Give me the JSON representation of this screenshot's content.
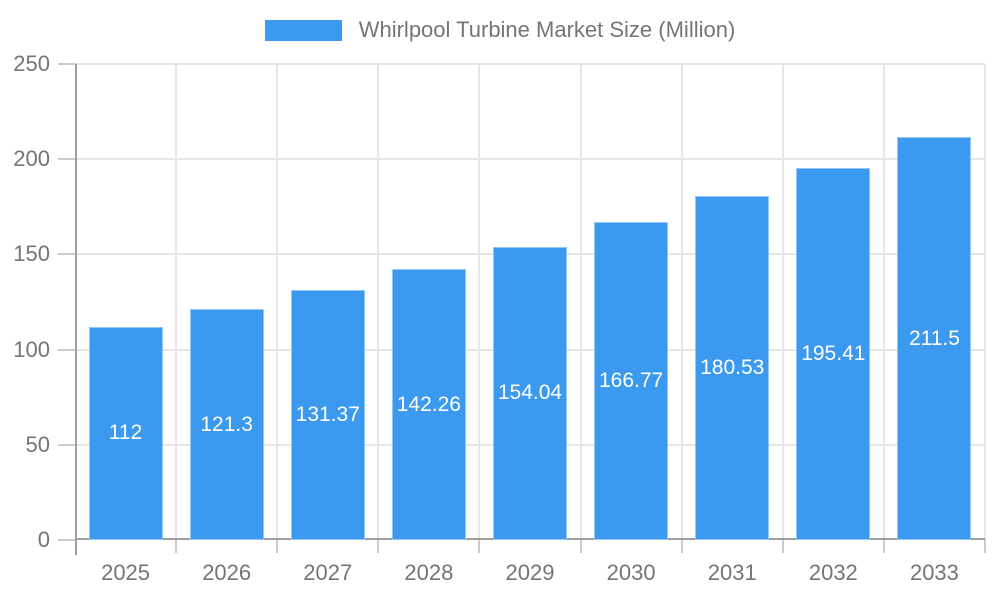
{
  "legend": {
    "label": "Whirlpool Turbine Market Size (Million)"
  },
  "colors": {
    "bar": "#3b99f0",
    "bar_stroke": "#a7ccf2",
    "axis": "#9e9e9e",
    "gridline": "#e6e6e6",
    "tick": "#cccccc",
    "label_text": "#757575",
    "value_label_text": "#ffffff",
    "background": "#ffffff"
  },
  "chart_data": {
    "type": "bar",
    "title": "",
    "legend_label": "Whirlpool Turbine Market Size (Million)",
    "legend_position": "top",
    "xlabel": "",
    "ylabel": "",
    "categories": [
      "2025",
      "2026",
      "2027",
      "2028",
      "2029",
      "2030",
      "2031",
      "2032",
      "2033"
    ],
    "values": [
      112,
      121.3,
      131.37,
      142.26,
      154.04,
      166.77,
      180.53,
      195.41,
      211.5
    ],
    "value_labels": [
      "112",
      "121.3",
      "131.37",
      "142.26",
      "154.04",
      "166.77",
      "180.53",
      "195.41",
      "211.5"
    ],
    "ylim": [
      0,
      250
    ],
    "yticks": [
      0,
      50,
      100,
      150,
      200,
      250
    ],
    "grid": "on"
  }
}
